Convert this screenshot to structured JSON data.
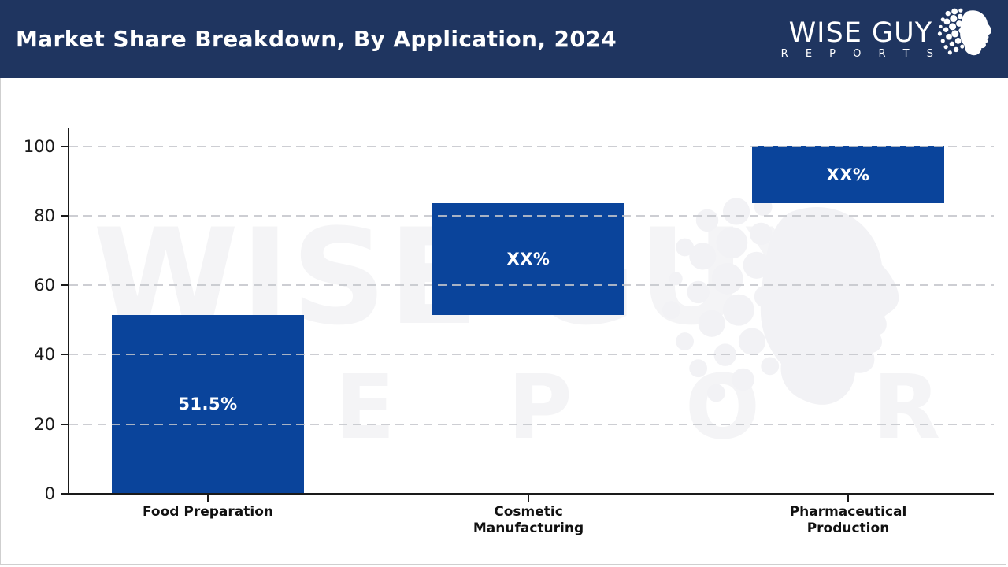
{
  "header": {
    "title": "Market Share Breakdown, By Application, 2024",
    "logo": {
      "line1": "WISE GUY",
      "line2": "R E P O R T S"
    }
  },
  "watermark": {
    "line1": "WISE GUY",
    "line2": "R E P O R T S"
  },
  "colors": {
    "header_bg": "#1f3560",
    "bar": "#0a449b",
    "grid": "#c4c6cb",
    "axis": "#1a1a1a",
    "watermark": "#f4f4f6",
    "title_text": "#ffffff",
    "bar_label_text": "#ffffff"
  },
  "chart_data": {
    "type": "bar",
    "subtype": "waterfall",
    "title": "Market Share Breakdown, By Application, 2024",
    "categories": [
      "Food Preparation",
      "Cosmetic\nManufacturing",
      "Pharmaceutical\nProduction"
    ],
    "segments": [
      {
        "category": "Food Preparation",
        "start": 0,
        "end": 51.5,
        "label": "51.5%"
      },
      {
        "category": "Cosmetic Manufacturing",
        "start": 51.5,
        "end": 83.5,
        "label": "XX%"
      },
      {
        "category": "Pharmaceutical Production",
        "start": 83.5,
        "end": 100,
        "label": "XX%"
      }
    ],
    "ylim": [
      0,
      100
    ],
    "yticks": [
      0,
      20,
      40,
      60,
      80,
      100
    ],
    "grid": "horizontal-dashed",
    "legend": "none"
  }
}
